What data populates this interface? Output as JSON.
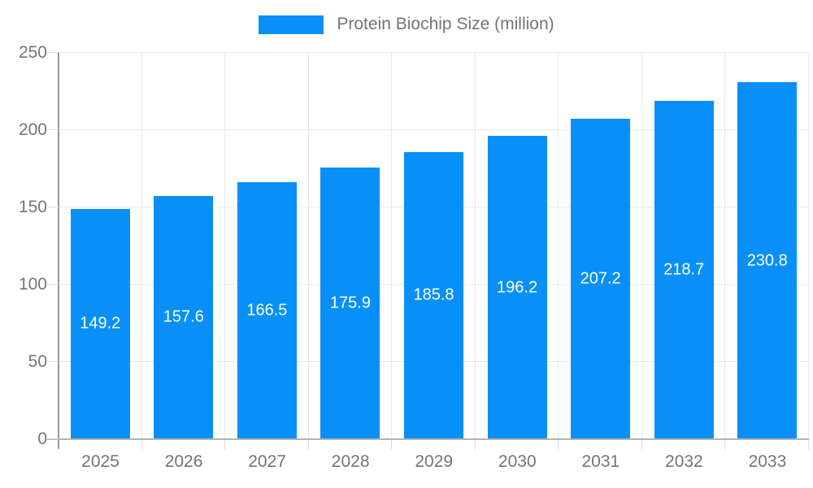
{
  "chart_data": {
    "type": "bar",
    "title": "Protein Biochip Size (million)",
    "categories": [
      "2025",
      "2026",
      "2027",
      "2028",
      "2029",
      "2030",
      "2031",
      "2032",
      "2033"
    ],
    "series": [
      {
        "name": "Protein Biochip Size (million)",
        "values": [
          149.2,
          157.6,
          166.5,
          175.9,
          185.8,
          196.2,
          207.2,
          218.7,
          230.8
        ]
      }
    ],
    "value_labels": [
      "149.2",
      "157.6",
      "166.5",
      "175.9",
      "185.8",
      "196.2",
      "207.2",
      "218.7",
      "230.8"
    ],
    "xlabel": "",
    "ylabel": "",
    "ylim": [
      0,
      250
    ],
    "y_ticks": [
      0,
      50,
      100,
      150,
      200,
      250
    ],
    "grid": true,
    "legend_position": "top-center",
    "colors": {
      "bar": "#0990f8",
      "grid": "#e8e8e8",
      "tick": "#dcdcdc",
      "y_axis_line": "#999999",
      "x_baseline": "#b3b3b3",
      "axis_text": "#757575",
      "value_text": "#ffffff",
      "background": "#ffffff"
    }
  }
}
